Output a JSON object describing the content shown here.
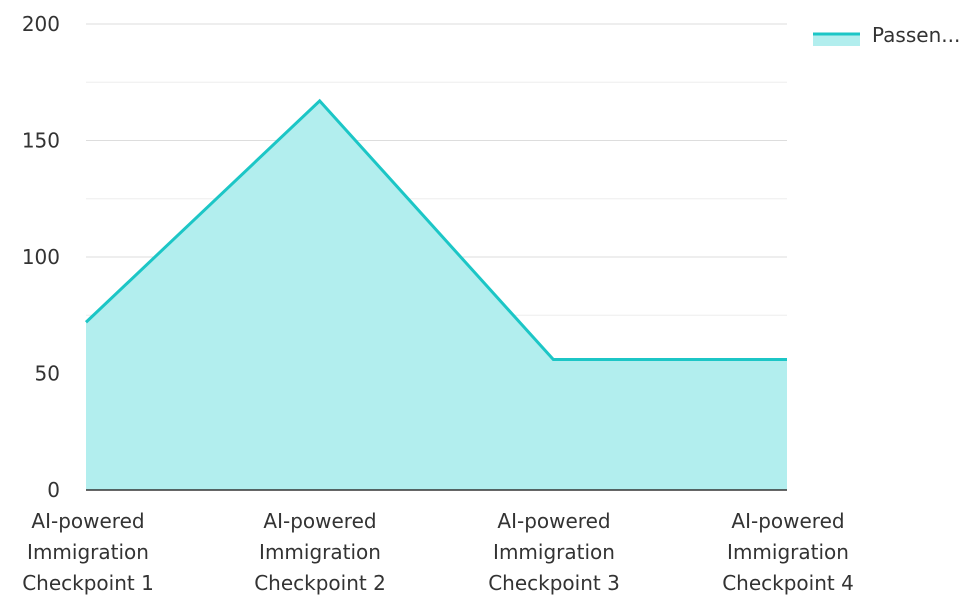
{
  "chart_data": {
    "type": "area",
    "categories": [
      [
        "AI-powered",
        "Immigration",
        "Checkpoint 1"
      ],
      [
        "AI-powered",
        "Immigration",
        "Checkpoint 2"
      ],
      [
        "AI-powered",
        "Immigration",
        "Checkpoint 3"
      ],
      [
        "AI-powered",
        "Immigration",
        "Checkpoint 4"
      ]
    ],
    "series": [
      {
        "name": "Passen...",
        "values": [
          72,
          167,
          56,
          56
        ]
      }
    ],
    "ylim": [
      0,
      200
    ],
    "yticks": [
      0,
      50,
      100,
      150,
      200
    ],
    "grid": true,
    "legend_position": "top-right",
    "colors": {
      "line": "#1cc6c6",
      "fill": "#b2eeee",
      "grid": "#dddddd",
      "axis": "#333333"
    }
  }
}
